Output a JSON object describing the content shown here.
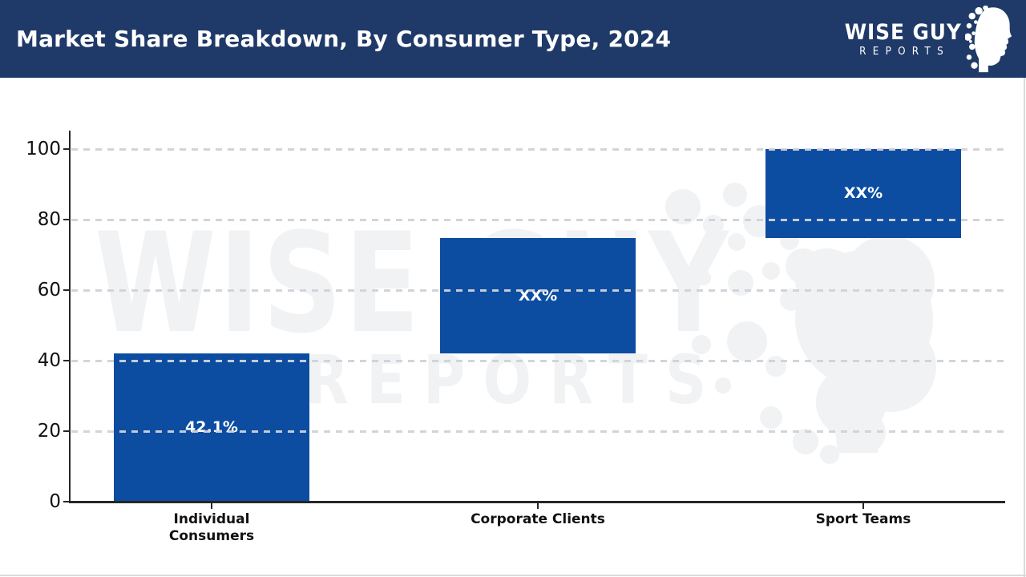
{
  "header": {
    "title": "Market Share Breakdown, By Consumer Type, 2024",
    "logo_line1": "WISE GUY",
    "logo_line2": "REPORTS"
  },
  "watermark": {
    "line1": "WISE GUY",
    "line2": "REPORTS"
  },
  "colors": {
    "header_bg": "#1f3a68",
    "bar": "#0c4da2",
    "bar_label": "#ffffff",
    "grid": "#cfd2d8",
    "axis": "#262626",
    "tick_label": "#111111",
    "watermark": "#f1f2f4"
  },
  "chart_data": {
    "type": "bar",
    "subtype": "floating-segment-waterfall",
    "title": "Market Share Breakdown, By Consumer Type, 2024",
    "xlabel": "",
    "ylabel": "",
    "categories": [
      "Individual\nConsumers",
      "Corporate Clients",
      "Sport Teams"
    ],
    "segments": [
      {
        "category": "Individual Consumers",
        "from": 0,
        "to": 42.1,
        "label": "42.1%"
      },
      {
        "category": "Corporate Clients",
        "from": 42.1,
        "to": 74.8,
        "label": "XX%"
      },
      {
        "category": "Sport Teams",
        "from": 74.8,
        "to": 100,
        "label": "XX%"
      }
    ],
    "yticks": [
      0,
      20,
      40,
      60,
      80,
      100
    ],
    "ylim": [
      0,
      105
    ],
    "grid": "dashed-horizontal",
    "legend": "none"
  }
}
